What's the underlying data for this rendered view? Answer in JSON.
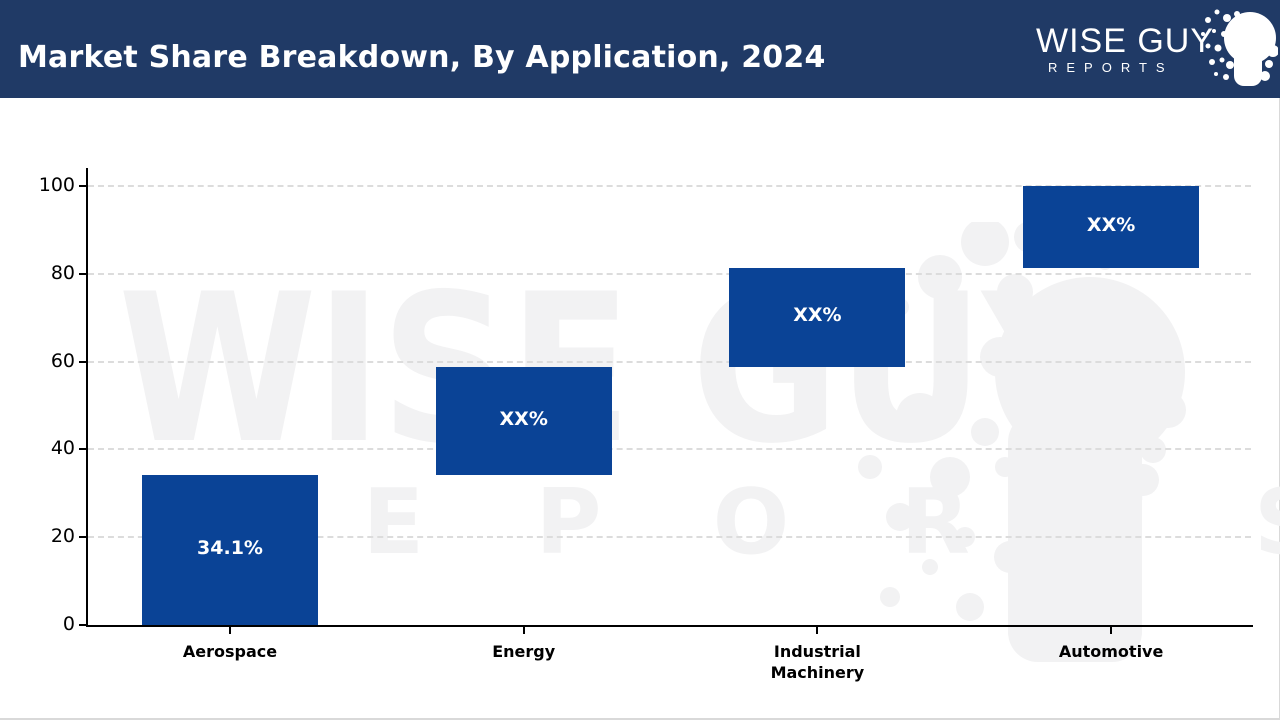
{
  "page": {
    "background": "#ffffff",
    "border_color": "#d9d9d9"
  },
  "header": {
    "title": "Market Share Breakdown, By Application, 2024",
    "bg_color": "#203a66",
    "text_color": "#ffffff",
    "logo": {
      "wordmark": "WISE GUY",
      "subtext": "REPORTS"
    }
  },
  "watermark": {
    "line1": "WISE GUY",
    "line2": "R E P O R T S",
    "color": "#f2f2f3"
  },
  "chart_data": {
    "type": "bar",
    "subtype": "waterfall",
    "title": "Market Share Breakdown, By Application, 2024",
    "categories": [
      "Aerospace",
      "Energy",
      "Industrial Machinery",
      "Automotive"
    ],
    "category_label_lines": [
      [
        "Aerospace"
      ],
      [
        "Energy"
      ],
      [
        "Industrial",
        "Machinery"
      ],
      [
        "Automotive"
      ]
    ],
    "segments": [
      {
        "category": "Aerospace",
        "start": 0,
        "end": 34.1,
        "label": "34.1%"
      },
      {
        "category": "Energy",
        "start": 34.1,
        "end": 58.8,
        "label": "XX%"
      },
      {
        "category": "Industrial Machinery",
        "start": 58.8,
        "end": 81.3,
        "label": "XX%"
      },
      {
        "category": "Automotive",
        "start": 81.3,
        "end": 100,
        "label": "XX%"
      }
    ],
    "y_ticks": [
      0,
      20,
      40,
      60,
      80,
      100
    ],
    "ylim": [
      0,
      104
    ],
    "xlabel": "",
    "ylabel": "",
    "grid": {
      "axis": "y",
      "style": "dashed",
      "color": "#dcdcdc"
    },
    "legend": "none",
    "bar_color": "#0a4396",
    "bar_label_color": "#ffffff",
    "axis_color": "#000000"
  }
}
